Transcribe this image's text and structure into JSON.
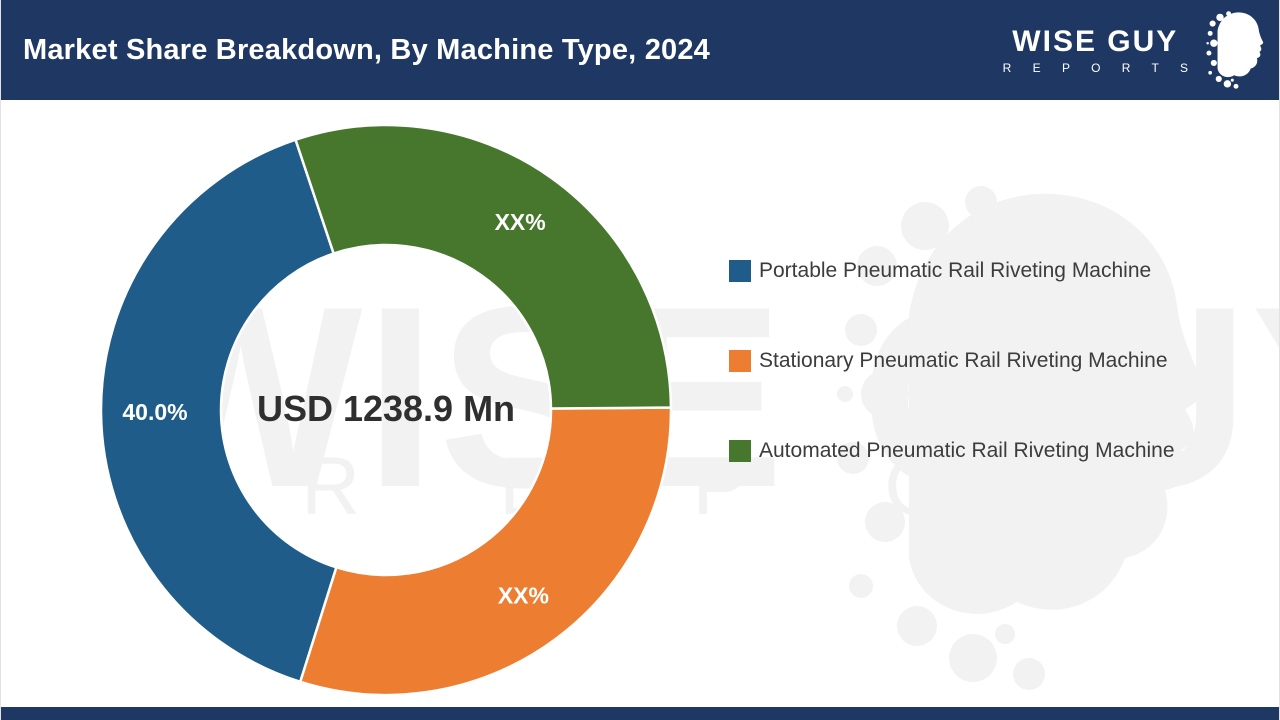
{
  "header": {
    "title": "Market Share Breakdown, By Machine Type, 2024",
    "logo": {
      "line1": "WISE GUY",
      "line2": "R E P O R T S"
    }
  },
  "watermark": {
    "line1": "WISE GUY",
    "line2": "R E P O R T S"
  },
  "colors": {
    "header_bg": "#1E3863",
    "footer_bg": "#1E3863",
    "legend_text": "#3C3C3C",
    "center_text": "#2F2F2F",
    "segment_divider": "#FFFFFF"
  },
  "chart_data": {
    "type": "pie",
    "subtype": "donut",
    "title": "Market Share Breakdown, By Machine Type, 2024",
    "center_label": "USD 1238.9 Mn",
    "legend_position": "right",
    "start_angle_deg": 108.5,
    "inner_radius_ratio": 0.58,
    "segments": [
      {
        "label": "Portable Pneumatic Rail Riveting Machine",
        "value_pct": 40.0,
        "display_label": "40.0%",
        "color": "#1F5C89"
      },
      {
        "label": "Stationary Pneumatic Rail Riveting Machine",
        "value_pct": 30.0,
        "display_label": "XX%",
        "color": "#ED7D31"
      },
      {
        "label": "Automated Pneumatic Rail Riveting Machine",
        "value_pct": 30.0,
        "display_label": "XX%",
        "color": "#46772C"
      }
    ]
  }
}
